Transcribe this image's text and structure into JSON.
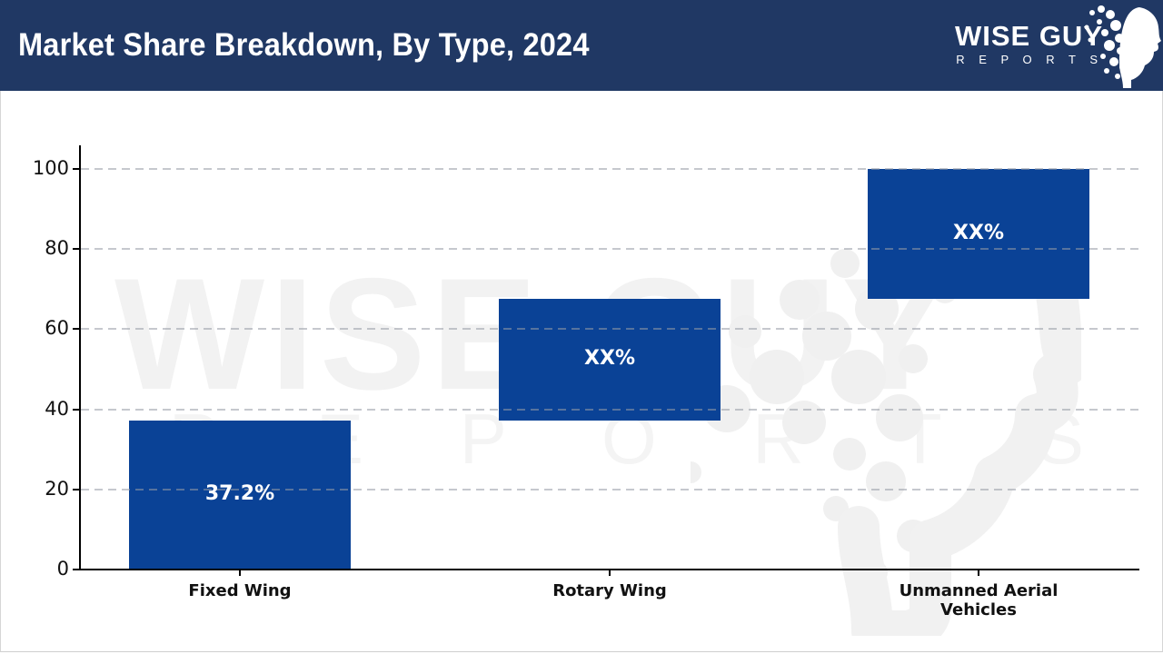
{
  "header": {
    "title": "Market Share Breakdown, By Type, 2024",
    "logo": {
      "line1": "WISE GUY",
      "line2": "R E P O R T S"
    }
  },
  "watermark": {
    "line1": "WISE GUY",
    "line2": "R E P O R T S"
  },
  "colors": {
    "header_bg": "#203864",
    "bar": "#0A4296",
    "bar_label_text": "#FFFFFF",
    "axis": "#000000",
    "gridline": "#CFCFCF",
    "tick_text": "#111111",
    "watermark_text": "#F2F2F2"
  },
  "chart_data": {
    "type": "bar",
    "subtype": "waterfall",
    "title": "Market Share Breakdown, By Type, 2024",
    "xlabel": "",
    "ylabel": "",
    "categories": [
      "Fixed Wing",
      "Rotary Wing",
      "Unmanned Aerial Vehicles"
    ],
    "series": [
      {
        "name": "Market share (%)",
        "segments": [
          {
            "category": "Fixed Wing",
            "start": 0,
            "end": 37.2,
            "value": 37.2,
            "label": "37.2%"
          },
          {
            "category": "Rotary Wing",
            "start": 37.2,
            "end": 67.5,
            "value": 30.3,
            "label": "XX%"
          },
          {
            "category": "Unmanned Aerial Vehicles",
            "start": 67.5,
            "end": 100,
            "value": 32.5,
            "label": "XX%"
          }
        ]
      }
    ],
    "ylim": [
      0,
      100
    ],
    "yticks": [
      0,
      20,
      40,
      60,
      80,
      100
    ],
    "grid": "horizontal dashed, drawn over bars",
    "legend": "none"
  }
}
